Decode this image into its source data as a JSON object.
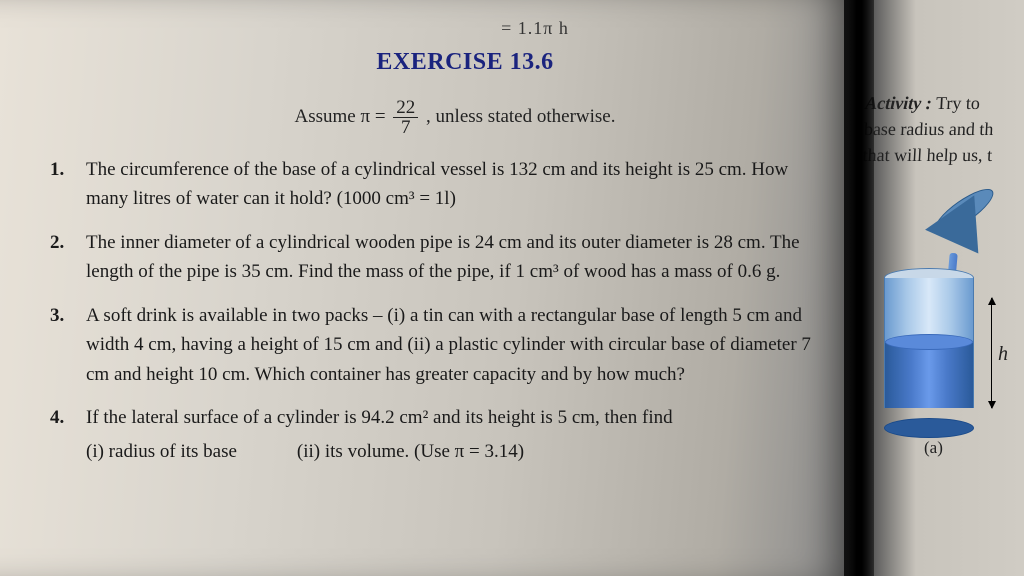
{
  "top_fragment": "= 1.1π h",
  "exercise_title": "EXERCISE 13.6",
  "assume": {
    "prefix": "Assume π =",
    "numerator": "22",
    "denominator": "7",
    "suffix": ", unless stated otherwise."
  },
  "questions": [
    "The circumference of the base of a cylindrical vessel is 132 cm and its height is 25 cm. How many litres of water can it hold? (1000 cm³ = 1l)",
    "The inner diameter of a cylindrical wooden pipe is 24 cm and its outer diameter is 28 cm. The length of the pipe is 35 cm. Find the mass of the pipe, if 1 cm³ of wood has a mass of 0.6 g.",
    "A soft drink is available in two packs – (i) a tin can with a rectangular base of length 5 cm and width 4 cm, having a height of 15 cm and (ii) a plastic cylinder with circular base of diameter 7 cm and height 10 cm. Which container has greater capacity and by how much?",
    "If the lateral surface of a cylinder is 94.2 cm² and its height is 5 cm, then find"
  ],
  "q4_parts": {
    "i": "(i) radius of its base",
    "ii": "(ii) its volume. (Use π = 3.14)"
  },
  "right_page": {
    "line1_bold": "Activity :",
    "line1_rest": " Try to ",
    "line2": "base radius and th",
    "line3": "that will help us, t"
  },
  "figure": {
    "h_label": "h",
    "caption": "(a)"
  },
  "colors": {
    "title": "#1a237e",
    "text": "#1a1a1a",
    "water": "#2a5a9a",
    "cylinder": "#6a9acf"
  }
}
